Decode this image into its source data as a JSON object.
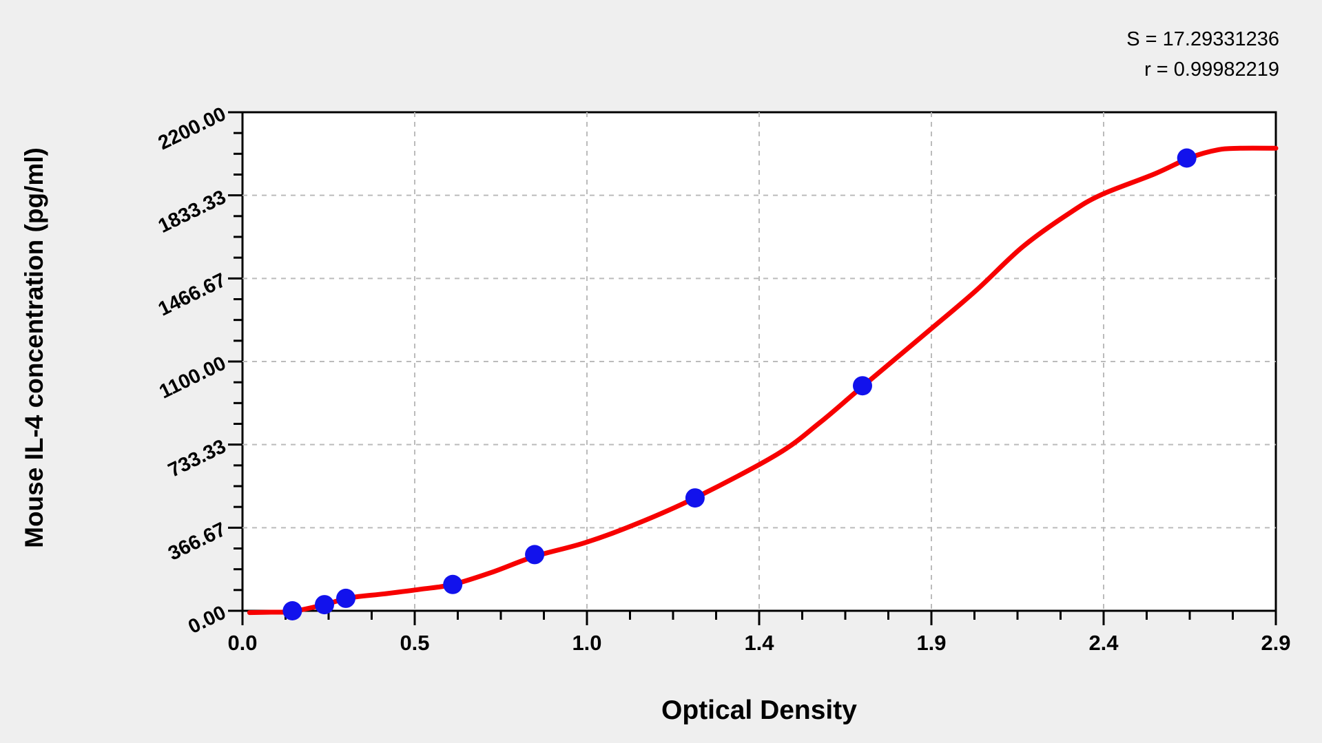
{
  "stats": {
    "s_line": "S = 17.29331236",
    "r_line": "r = 0.99982219"
  },
  "chart_data": {
    "type": "scatter",
    "title": "",
    "xlabel": "Optical Density",
    "ylabel": "Mouse IL-4 concentration (pg/ml)",
    "xlim": [
      0,
      2.9
    ],
    "ylim": [
      0,
      2200
    ],
    "grid": "dashed-at-major-ticks",
    "legend": "none",
    "x_ticks": {
      "labels": [
        "0.0",
        "0.5",
        "1.0",
        "1.4",
        "1.9",
        "2.4",
        "2.9"
      ],
      "minor_divisions_per_major": 4
    },
    "y_ticks": {
      "labels": [
        "0.00",
        "366.67",
        "733.33",
        "1100.00",
        "1466.67",
        "1833.33",
        "2200.00"
      ],
      "minor_divisions_per_major": 4
    },
    "annotations": {
      "S": 17.29331236,
      "r": 0.99982219
    },
    "series": [
      {
        "name": "standard-points",
        "type": "scatter",
        "marker": "circle",
        "points": [
          [
            0.14,
            0
          ],
          [
            0.23,
            27
          ],
          [
            0.29,
            55
          ],
          [
            0.59,
            116
          ],
          [
            0.82,
            248
          ],
          [
            1.27,
            498
          ],
          [
            1.74,
            993
          ],
          [
            2.65,
            1998
          ]
        ]
      },
      {
        "name": "fitted-curve",
        "type": "line",
        "points": [
          [
            0.02,
            -8
          ],
          [
            0.08,
            -6
          ],
          [
            0.14,
            -3
          ],
          [
            0.23,
            27
          ],
          [
            0.3,
            57
          ],
          [
            0.4,
            75
          ],
          [
            0.5,
            95
          ],
          [
            0.59,
            116
          ],
          [
            0.7,
            170
          ],
          [
            0.82,
            240
          ],
          [
            0.96,
            300
          ],
          [
            1.1,
            380
          ],
          [
            1.27,
            498
          ],
          [
            1.5,
            690
          ],
          [
            1.62,
            830
          ],
          [
            1.74,
            990
          ],
          [
            1.93,
            1241
          ],
          [
            2.06,
            1415
          ],
          [
            2.19,
            1607
          ],
          [
            2.32,
            1754
          ],
          [
            2.41,
            1836
          ],
          [
            2.56,
            1928
          ],
          [
            2.66,
            2000
          ],
          [
            2.74,
            2035
          ],
          [
            2.8,
            2041
          ],
          [
            2.9,
            2041
          ]
        ]
      }
    ],
    "colors": {
      "curve": "#f70000",
      "points": "#1212ec",
      "grid": "#bbbbbb",
      "frame": "#000000",
      "plot_bg": "#ffffff",
      "page_bg": "#efefef",
      "text": "#000000"
    }
  }
}
